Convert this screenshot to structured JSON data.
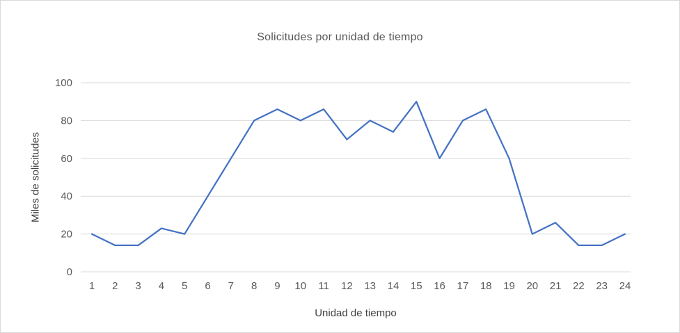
{
  "chart_data": {
    "type": "line",
    "title": "Solicitudes por unidad de tiempo",
    "xlabel": "Unidad de tiempo",
    "ylabel": "Miles de solicitudes",
    "categories": [
      1,
      2,
      3,
      4,
      5,
      6,
      7,
      8,
      9,
      10,
      11,
      12,
      13,
      14,
      15,
      16,
      17,
      18,
      19,
      20,
      21,
      22,
      23,
      24
    ],
    "values": [
      20,
      14,
      14,
      23,
      20,
      40,
      60,
      80,
      86,
      80,
      86,
      70,
      80,
      74,
      90,
      60,
      80,
      86,
      60,
      20,
      26,
      14,
      14,
      20
    ],
    "ylim": [
      0,
      100
    ],
    "yticks": [
      0,
      20,
      40,
      60,
      80,
      100
    ],
    "grid": true,
    "legend": "none",
    "line_color": "#4472c4",
    "grid_color": "#d9d9d9",
    "text_color": "#595959"
  }
}
